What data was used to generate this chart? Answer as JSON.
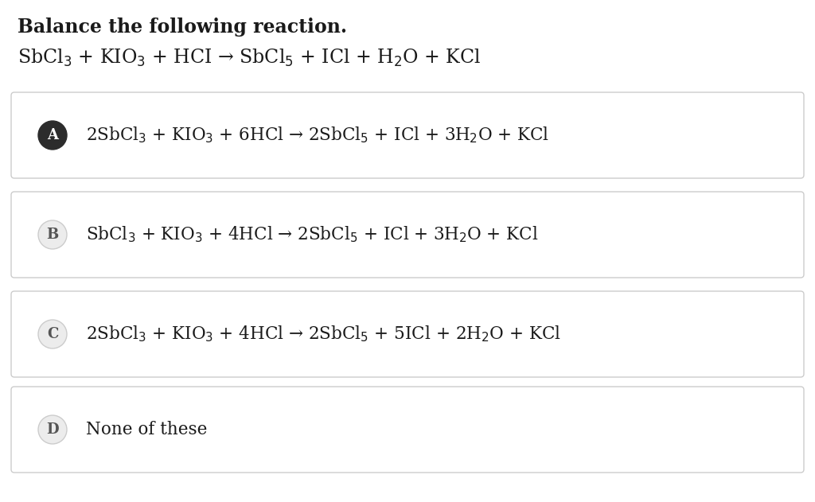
{
  "title": "Balance the following reaction.",
  "question_equation": "SbCl$_3$ + KIO$_3$ + HCI → SbCl$_5$ + ICl + H$_2$O + KCl",
  "options": [
    {
      "label": "A",
      "text": "2SbCl$_3$ + KIO$_3$ + 6HCl → 2SbCl$_5$ + ICl + 3H$_2$O + KCl",
      "circle_fill": "#2c2c2c",
      "circle_edge": "#2c2c2c",
      "letter_color": "#ffffff"
    },
    {
      "label": "B",
      "text": "SbCl$_3$ + KIO$_3$ + 4HCl → 2SbCl$_5$ + ICl + 3H$_2$O + KCl",
      "circle_fill": "#ececec",
      "circle_edge": "#cccccc",
      "letter_color": "#555555"
    },
    {
      "label": "C",
      "text": "2SbCl$_3$ + KIO$_3$ + 4HCl → 2SbCl$_5$ + 5ICl + 2H$_2$O + KCl",
      "circle_fill": "#ececec",
      "circle_edge": "#cccccc",
      "letter_color": "#555555"
    },
    {
      "label": "D",
      "text": "None of these",
      "circle_fill": "#ececec",
      "circle_edge": "#cccccc",
      "letter_color": "#555555"
    }
  ],
  "bg_color": "#ffffff",
  "box_face_color": "#ffffff",
  "box_edge_color": "#cccccc",
  "text_color": "#1a1a1a",
  "title_fontsize": 17,
  "eq_fontsize": 17,
  "option_fontsize": 15.5,
  "label_fontsize": 13
}
